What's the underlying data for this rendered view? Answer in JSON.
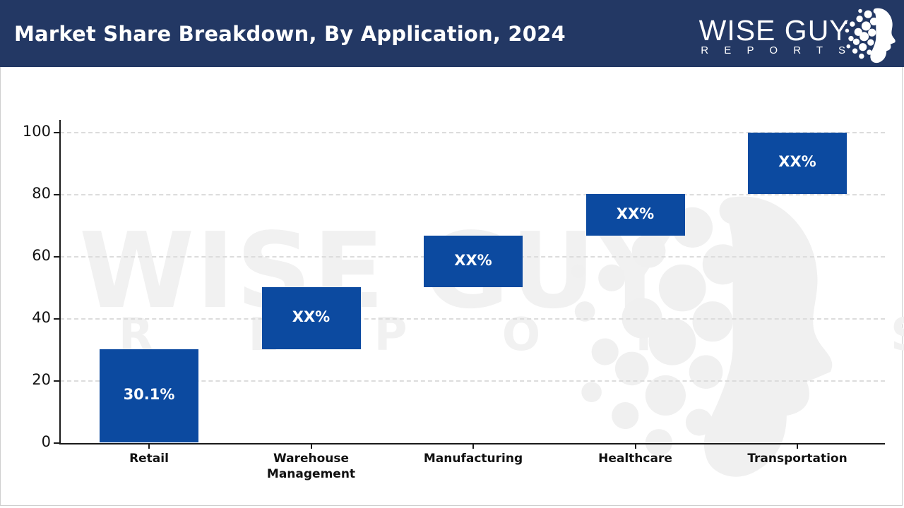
{
  "header": {
    "title": "Market Share Breakdown, By Application, 2024",
    "logo": {
      "wordmark": "WISE GUY",
      "subtext": "R E P O R T S"
    }
  },
  "watermark": {
    "wordmark": "WISE GUY",
    "subtext": "R E P O R T S"
  },
  "colors": {
    "header_bg": "#233864",
    "bar": "#0c4aa0",
    "axis": "#1a1a1a",
    "grid": "#dcdcdc",
    "watermark": "#f1f1f1"
  },
  "chart_data": {
    "type": "bar",
    "subtype": "waterfall",
    "title": "Market Share Breakdown, By Application, 2024",
    "xlabel": "",
    "ylabel": "",
    "ylim": [
      0,
      100
    ],
    "yticks": [
      0,
      20,
      40,
      60,
      80,
      100
    ],
    "grid": true,
    "legend": false,
    "bar_color": "#0c4aa0",
    "value_label_color": "#ffffff",
    "categories": [
      "Retail",
      "Warehouse Management",
      "Manufacturing",
      "Healthcare",
      "Transportation"
    ],
    "segments": [
      {
        "category": "Retail",
        "start": 0,
        "end": 30.1,
        "label": "30.1%"
      },
      {
        "category": "Warehouse Management",
        "start": 30.1,
        "end": 50.1,
        "label": "XX%"
      },
      {
        "category": "Manufacturing",
        "start": 50.1,
        "end": 66.6,
        "label": "XX%"
      },
      {
        "category": "Healthcare",
        "start": 66.6,
        "end": 80.1,
        "label": "XX%"
      },
      {
        "category": "Transportation",
        "start": 80.1,
        "end": 100,
        "label": "XX%"
      }
    ]
  }
}
